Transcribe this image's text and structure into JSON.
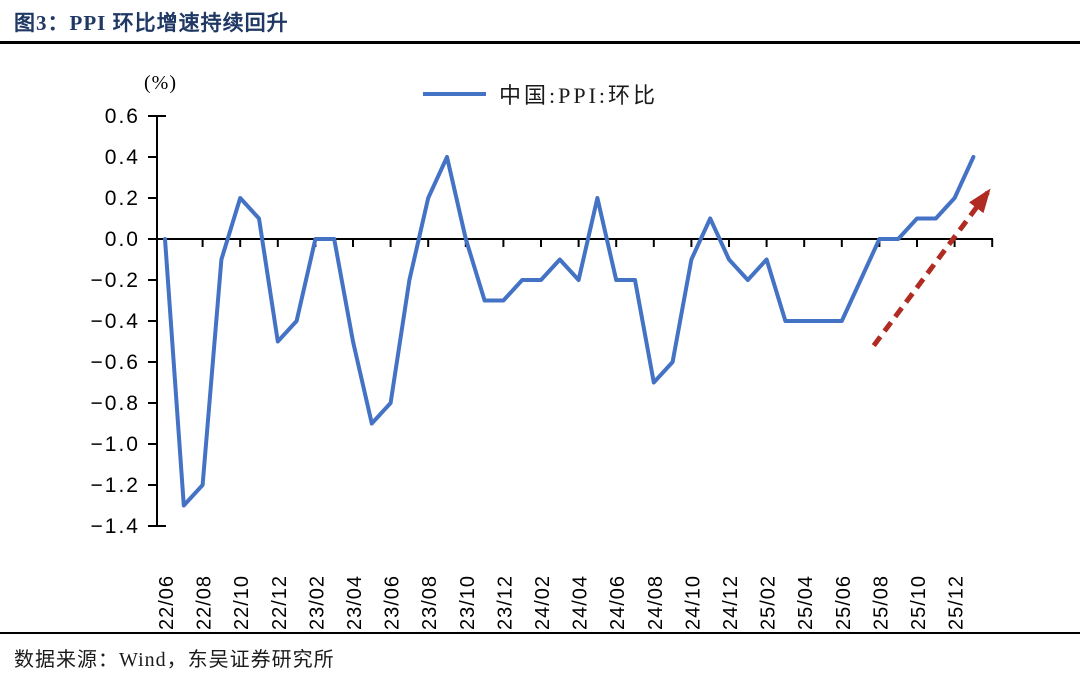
{
  "header": {
    "title": "图3：PPI 环比增速持续回升"
  },
  "chart": {
    "unit_label": "(%)",
    "legend_label": "中国:PPI:环比"
  },
  "footer": {
    "source": "数据来源：Wind，东吴证券研究所"
  },
  "chart_data": {
    "type": "line",
    "title": "PPI 环比增速持续回升",
    "legend_position": "top-center",
    "grid": "off",
    "ylabel": "(%)",
    "ylim": [
      -1.4,
      0.6
    ],
    "ytick_step": 0.2,
    "y_tick_labels": [
      "0.6",
      "0.4",
      "0.2",
      "0.0",
      "−0.2",
      "−0.4",
      "−0.6",
      "−0.8",
      "−1.0",
      "−1.2",
      "−1.4"
    ],
    "x_tick_labels": [
      "22/06",
      "22/08",
      "22/10",
      "22/12",
      "23/02",
      "23/04",
      "23/06",
      "23/08",
      "23/10",
      "23/12",
      "24/02",
      "24/04",
      "24/06",
      "24/08",
      "24/10",
      "24/12",
      "25/02",
      "25/04",
      "25/06",
      "25/08",
      "25/10",
      "25/12"
    ],
    "series": [
      {
        "name": "中国:PPI:环比",
        "color": "#4472C4",
        "x": [
          "22/06",
          "22/07",
          "22/08",
          "22/09",
          "22/10",
          "22/11",
          "22/12",
          "23/01",
          "23/02",
          "23/03",
          "23/04",
          "23/05",
          "23/06",
          "23/07",
          "23/08",
          "23/09",
          "23/10",
          "23/11",
          "23/12",
          "24/01",
          "24/02",
          "24/03",
          "24/04",
          "24/05",
          "24/06",
          "24/07",
          "24/08",
          "24/09",
          "24/10",
          "24/11",
          "24/12",
          "25/01",
          "25/02",
          "25/03",
          "25/04",
          "25/05",
          "25/06",
          "25/07",
          "25/08",
          "25/09",
          "25/10",
          "25/11",
          "25/12",
          "26/01"
        ],
        "values": [
          0.0,
          -1.3,
          -1.2,
          -0.1,
          0.2,
          0.1,
          -0.5,
          -0.4,
          0.0,
          0.0,
          -0.5,
          -0.9,
          -0.8,
          -0.2,
          0.2,
          0.4,
          0.0,
          -0.3,
          -0.3,
          -0.2,
          -0.2,
          -0.1,
          -0.2,
          0.2,
          -0.2,
          -0.2,
          -0.7,
          -0.6,
          -0.1,
          0.1,
          -0.1,
          -0.2,
          -0.1,
          -0.4,
          -0.4,
          -0.4,
          -0.4,
          -0.2,
          0.0,
          0.0,
          0.1,
          0.1,
          0.2,
          0.4
        ]
      }
    ],
    "annotation": {
      "type": "trend-arrow",
      "style": "dashed",
      "color": "#B02B22",
      "from": {
        "month_index": 37.7,
        "value": -0.52
      },
      "to": {
        "month_index": 44.0,
        "value": 0.25
      }
    }
  }
}
